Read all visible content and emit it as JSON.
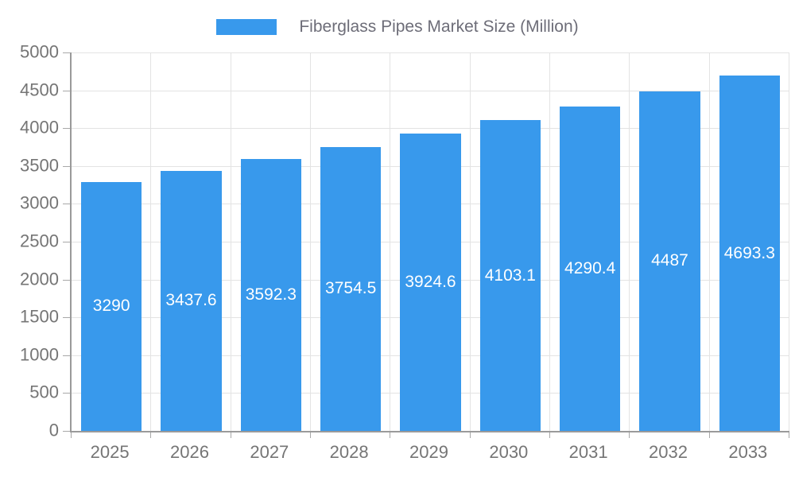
{
  "chart_data": {
    "type": "bar",
    "title": "",
    "legend": [
      "Fiberglass Pipes Market Size (Million)"
    ],
    "legend_position": "top",
    "categories": [
      "2025",
      "2026",
      "2027",
      "2028",
      "2029",
      "2030",
      "2031",
      "2032",
      "2033"
    ],
    "values": [
      3290,
      3437.6,
      3592.3,
      3754.5,
      3924.6,
      4103.1,
      4290.4,
      4487,
      4693.3
    ],
    "bar_labels": [
      "3290",
      "3437.6",
      "3592.3",
      "3754.5",
      "3924.6",
      "4103.1",
      "4290.4",
      "4487",
      "4693.3"
    ],
    "xlabel": "",
    "ylabel": "",
    "ylim": [
      0,
      5000
    ],
    "yticks": [
      0,
      500,
      1000,
      1500,
      2000,
      2500,
      3000,
      3500,
      4000,
      4500,
      5000
    ],
    "grid": true,
    "colors": {
      "bar": "#3899EC",
      "bar_label": "#ffffff",
      "axis_label": "#757575",
      "legend_text": "#6d6d78",
      "gridline": "#e3e3e3",
      "axis_line": "#9a9a9a"
    }
  }
}
